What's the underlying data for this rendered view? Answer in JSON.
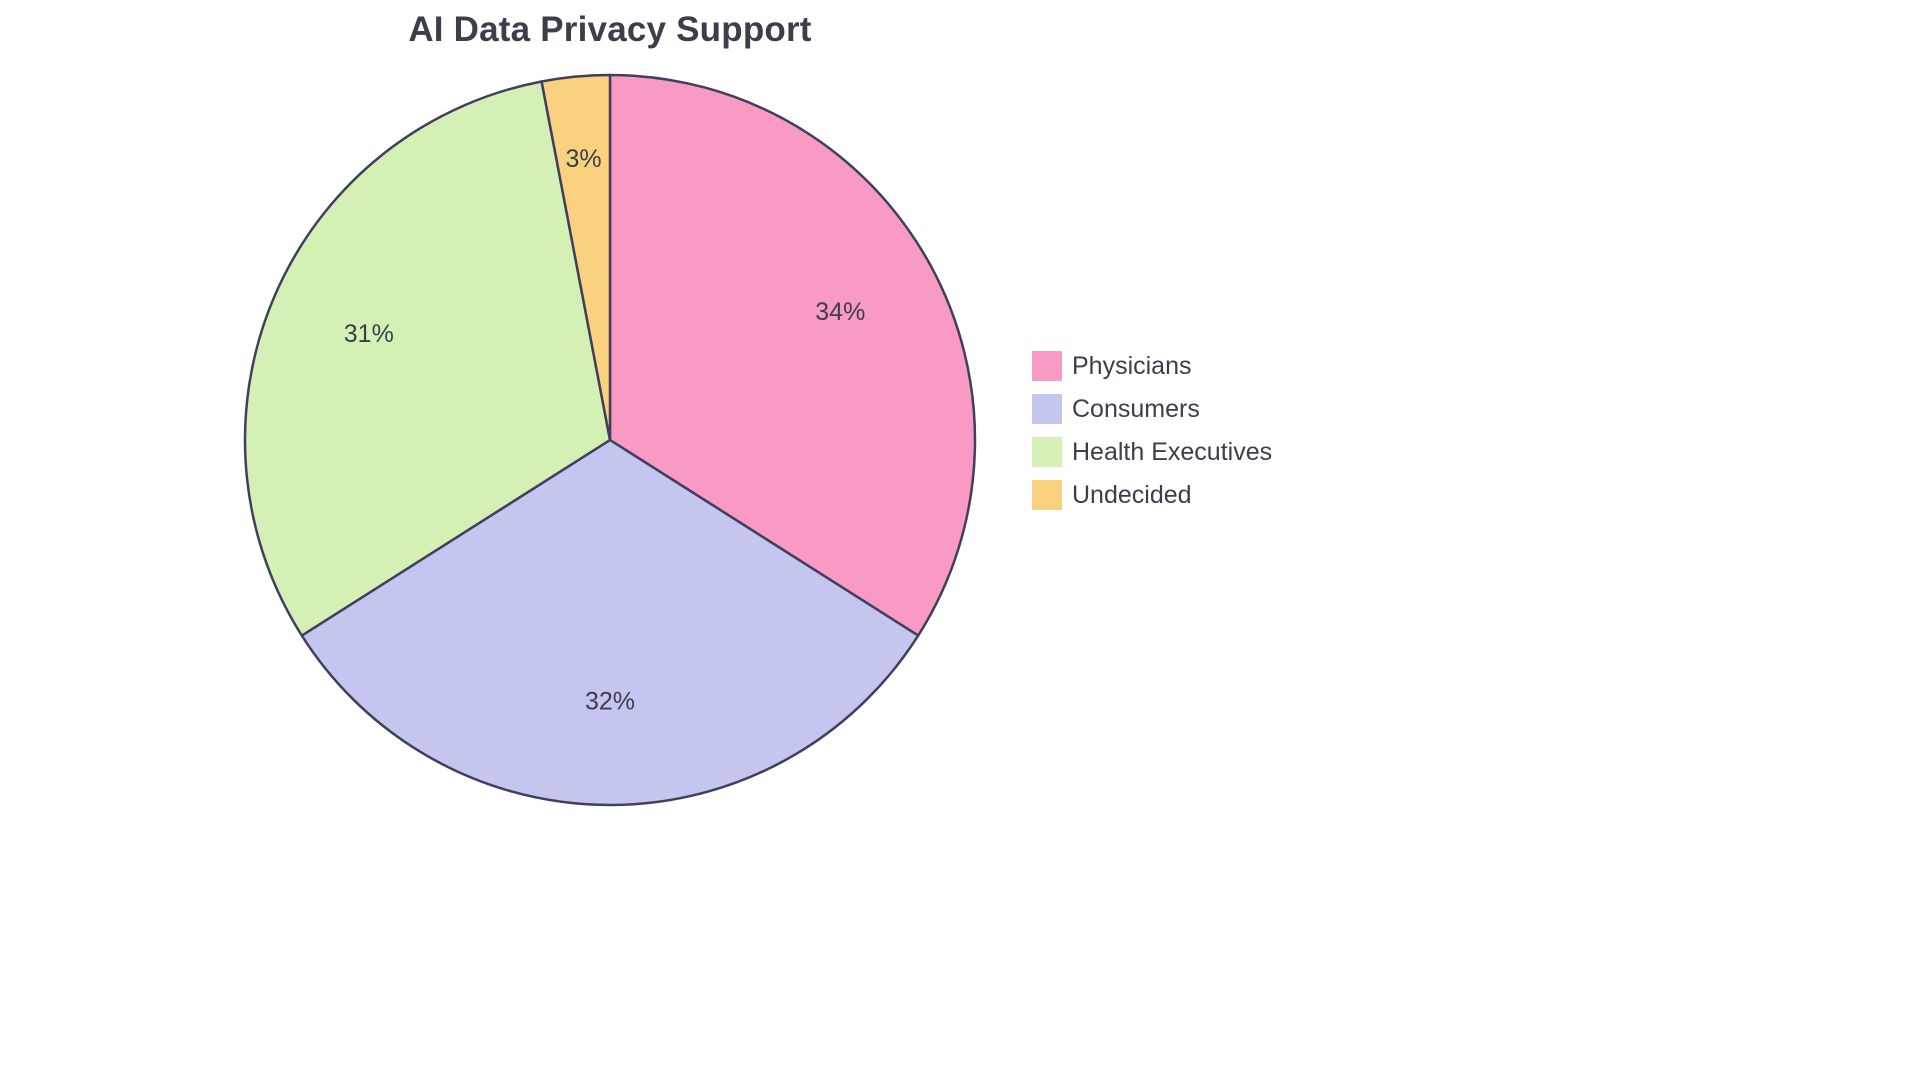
{
  "chart_data": {
    "type": "pie",
    "title": "AI Data Privacy Support",
    "slices": [
      {
        "label": "Physicians",
        "value": 34,
        "percent_label": "34%",
        "color": "#F89AC4"
      },
      {
        "label": "Consumers",
        "value": 32,
        "percent_label": "32%",
        "color": "#C5C6F0"
      },
      {
        "label": "Health Executives",
        "value": 31,
        "percent_label": "31%",
        "color": "#D5F0B5"
      },
      {
        "label": "Undecided",
        "value": 3,
        "percent_label": "3%",
        "color": "#FAD17E"
      }
    ],
    "legend": [
      "Physicians",
      "Consumers",
      "Health Executives",
      "Undecided"
    ],
    "legend_position": "right",
    "start_angle_deg_clockwise_from_top": 0,
    "stroke_color": "#403F5E",
    "text_color": "#3A3F4B"
  }
}
